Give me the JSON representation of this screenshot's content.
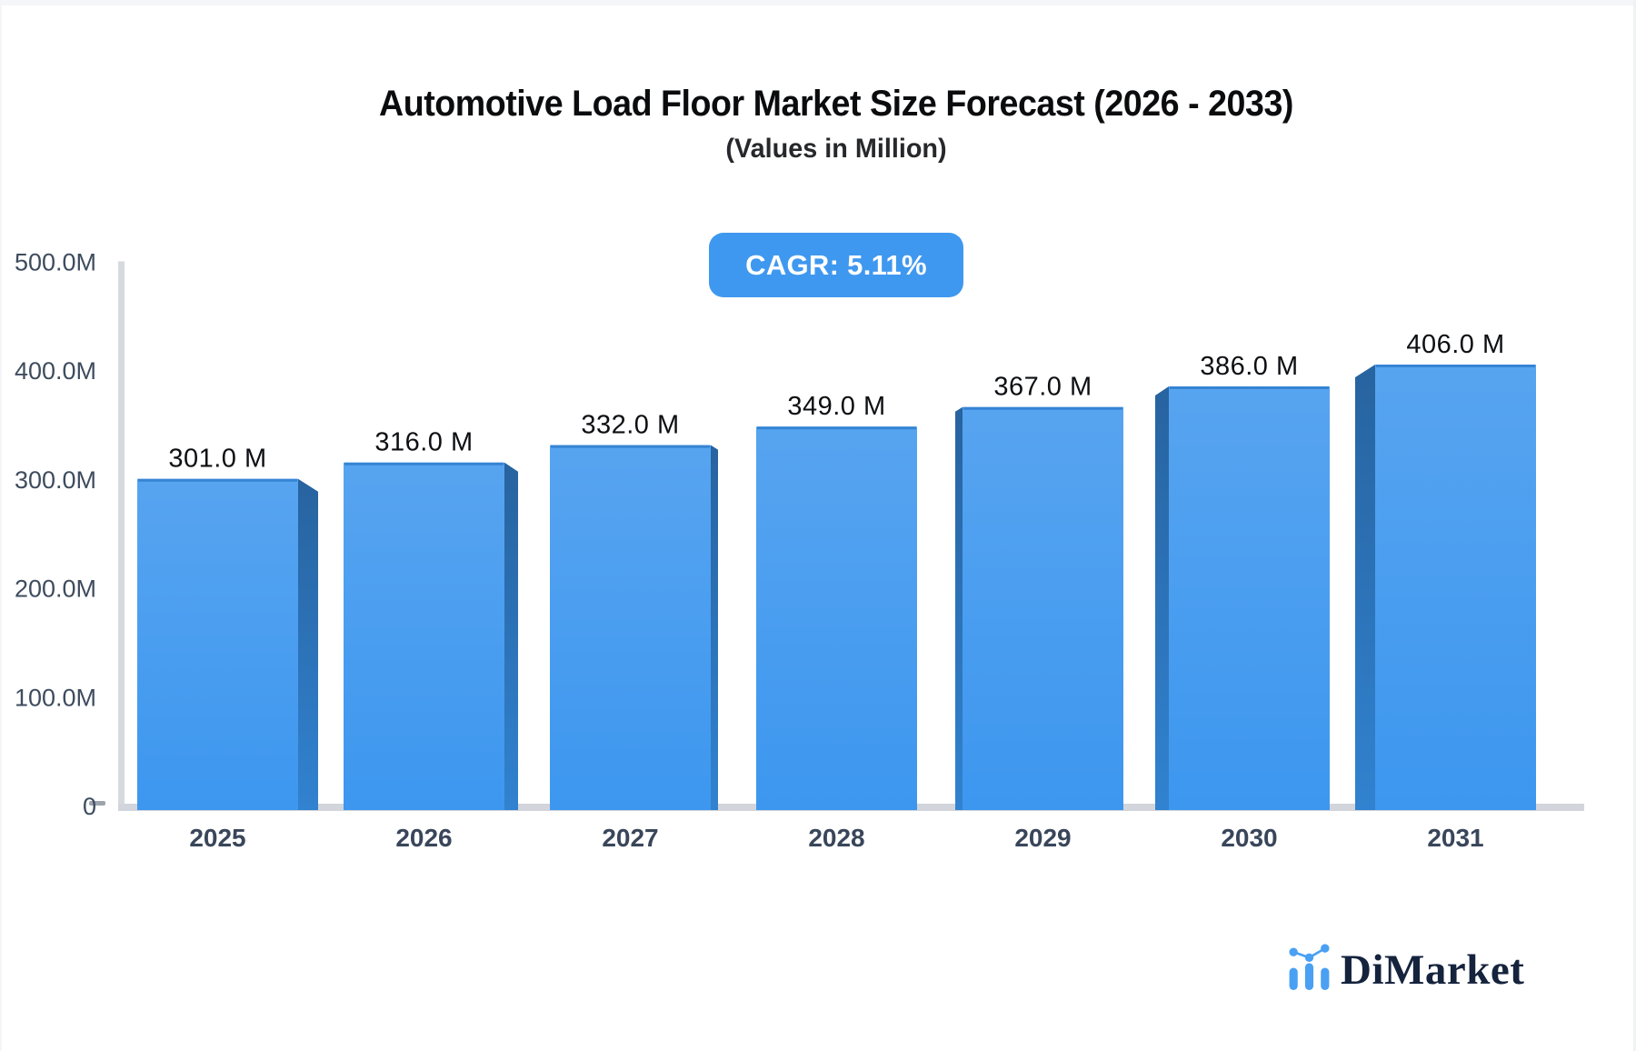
{
  "chart_data": {
    "type": "bar",
    "title": "Automotive Load Floor Market Size Forecast (2026 - 2033)",
    "subtitle": "(Values in Million)",
    "annotation_badge": "CAGR: 5.11%",
    "categories": [
      "2025",
      "2026",
      "2027",
      "2028",
      "2029",
      "2030",
      "2031"
    ],
    "values": [
      301.0,
      316.0,
      332.0,
      349.0,
      367.0,
      386.0,
      406.0
    ],
    "value_labels": [
      "301.0 M",
      "316.0 M",
      "332.0 M",
      "349.0 M",
      "367.0 M",
      "386.0 M",
      "406.0 M"
    ],
    "unit": "Million",
    "xlabel": "",
    "ylabel": "",
    "ylim": [
      0,
      500
    ],
    "y_axis": {
      "ticks": [
        {
          "value": 500,
          "label": "500.0M"
        },
        {
          "value": 400,
          "label": "400.0M"
        },
        {
          "value": 300,
          "label": "300.0M"
        },
        {
          "value": 200,
          "label": "200.0M"
        },
        {
          "value": 100,
          "label": "100.0M"
        },
        {
          "value": 0,
          "label": "0"
        }
      ]
    },
    "grid": false,
    "legend": null,
    "style": {
      "bar_face_top": "#57a4f0",
      "bar_face_bottom": "#3d97ef",
      "bar_side_top": "#27639f",
      "bar_side_bottom": "#3182d0",
      "bar_top_edge": "#3584d4",
      "axis_line": "#d6d9de",
      "baseline": "#d2d5db",
      "tick_dash": "#9ca3ac",
      "tick_label_color": "#3e4c5e",
      "x_label_color": "#39465a",
      "value_label_color": "#0d0f12",
      "badge_bg": "#3f98ef",
      "badge_text": "#ffffff"
    }
  },
  "branding": {
    "logo_text": "DiMarket",
    "logo_icon": "bar-chart-logo-icon",
    "logo_text_color": "#15233d",
    "logo_blue": "#4aa0f2"
  }
}
